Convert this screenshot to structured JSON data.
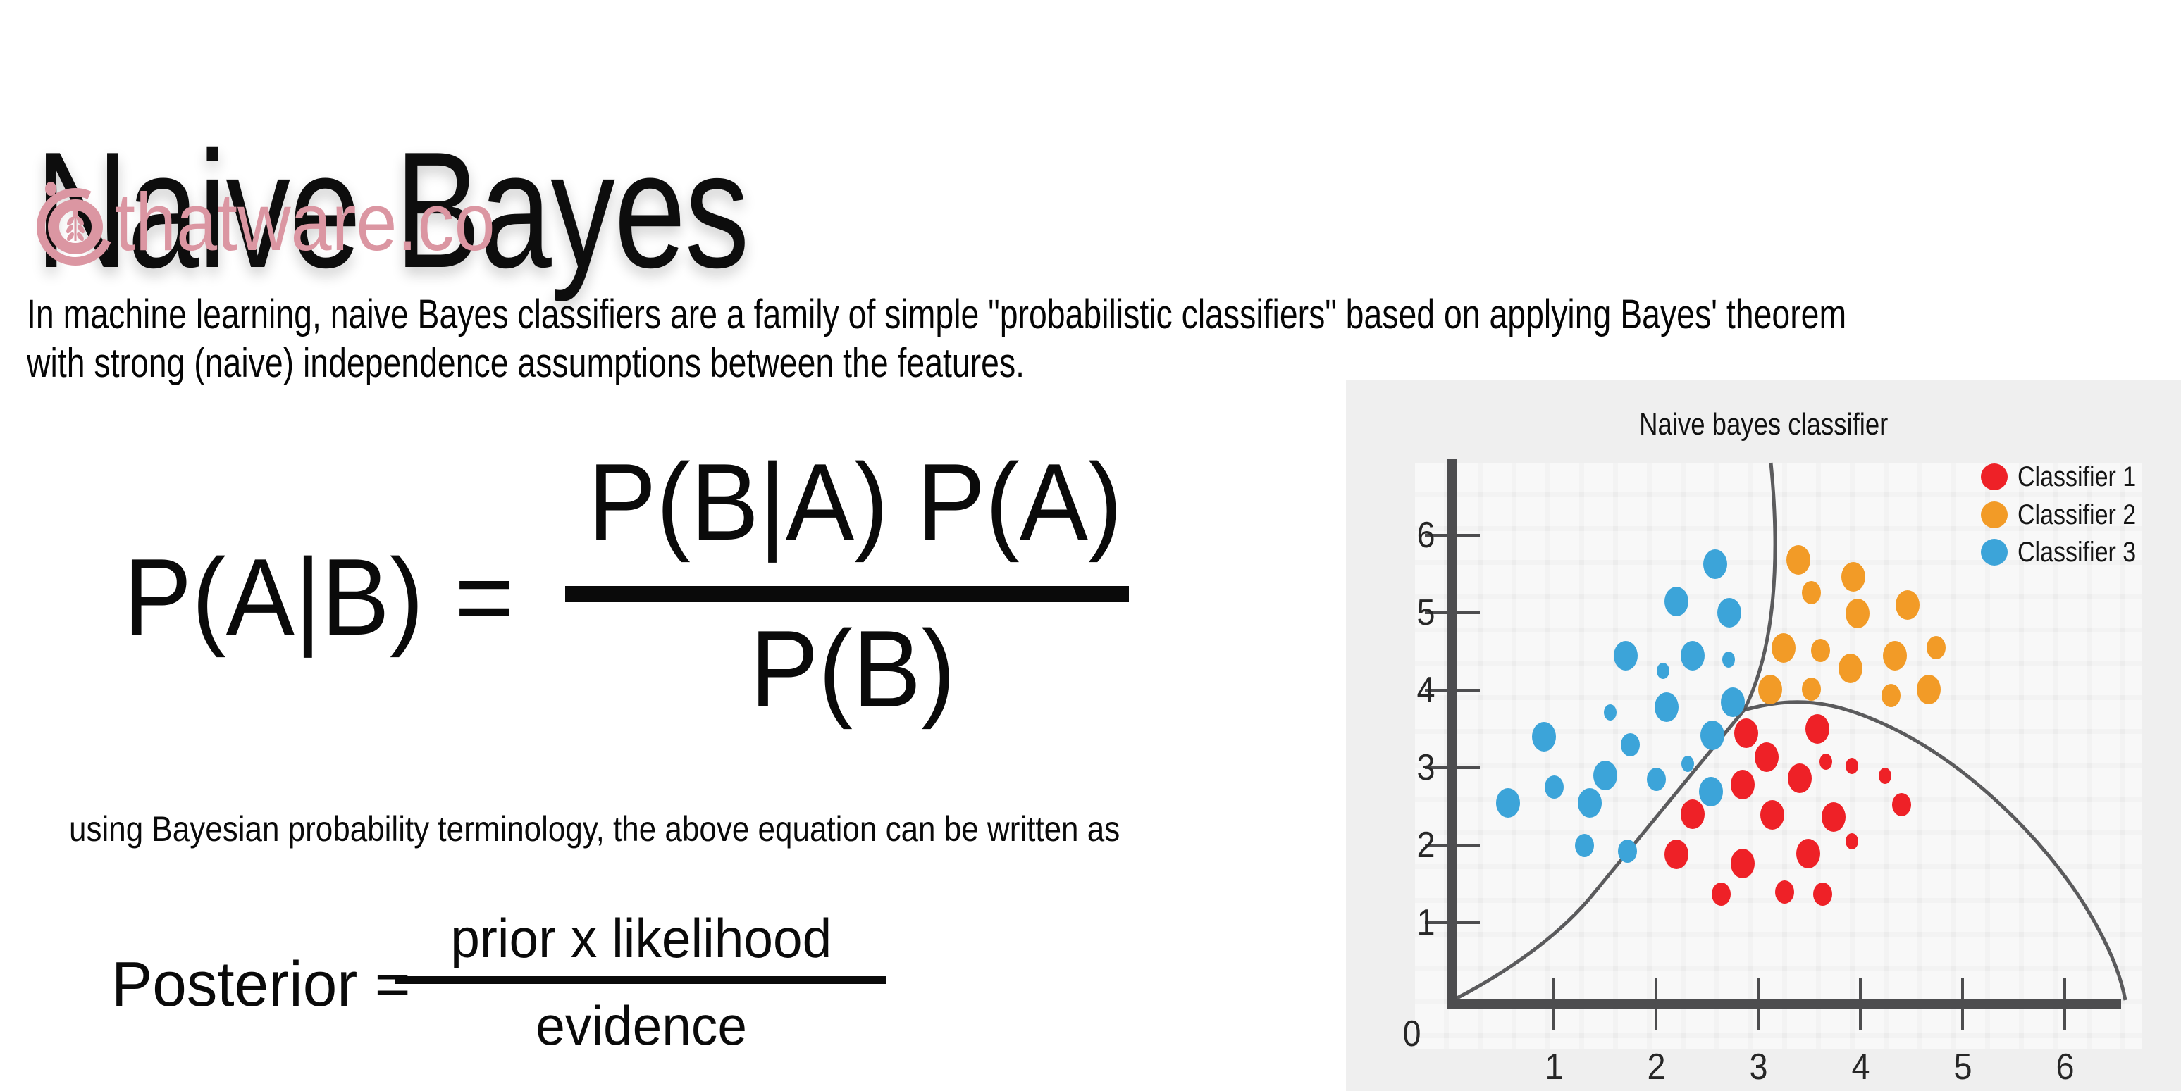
{
  "page": {
    "title": "Naive Bayes"
  },
  "brand": {
    "name": "thatware.co",
    "color": "#db96a2"
  },
  "intro": {
    "line1": "In machine learning, naive Bayes classifiers are a family of simple \"probabilistic classifiers\" based on applying Bayes' theorem",
    "line2": "with strong (naive) independence assumptions between the features."
  },
  "bayes_formula": {
    "lhs": "P(A|B)",
    "equals": "=",
    "numerator": "P(B|A) P(A)",
    "denominator": "P(B)"
  },
  "caption": "using Bayesian probability terminology, the above equation can be written as",
  "terminology_formula": {
    "lhs": "Posterior =",
    "numerator": "prior x likelihood",
    "denominator": "evidence"
  },
  "chart_data": {
    "type": "scatter",
    "title": "Naive bayes classifier",
    "xlabel": "",
    "ylabel": "",
    "xlim": [
      0,
      7
    ],
    "ylim": [
      0,
      7
    ],
    "grid": true,
    "x_ticks": [
      1,
      2,
      3,
      4,
      5,
      6
    ],
    "y_ticks": [
      1,
      2,
      3,
      4,
      5,
      6
    ],
    "origin_label": "0",
    "legend_position": "top-right",
    "legend": [
      {
        "label": "Classifier 1",
        "color": "#ee2127"
      },
      {
        "label": "Classifier 2",
        "color": "#f29b27"
      },
      {
        "label": "Classifier 3",
        "color": "#3ca4d9"
      }
    ],
    "series": [
      {
        "name": "Classifier 1",
        "color": "#ee2127",
        "points": [
          [
            2.88,
            3.45,
            "L"
          ],
          [
            3.58,
            3.5,
            "L"
          ],
          [
            3.08,
            3.14,
            "L"
          ],
          [
            3.66,
            3.08,
            "S"
          ],
          [
            3.92,
            3.02,
            "S"
          ],
          [
            4.24,
            2.9,
            "S"
          ],
          [
            3.41,
            2.86,
            "L"
          ],
          [
            2.85,
            2.78,
            "L"
          ],
          [
            2.36,
            2.4,
            "L"
          ],
          [
            3.14,
            2.39,
            "L"
          ],
          [
            3.74,
            2.36,
            "L"
          ],
          [
            4.4,
            2.52,
            "M"
          ],
          [
            3.92,
            2.05,
            "S"
          ],
          [
            2.2,
            1.88,
            "L"
          ],
          [
            2.85,
            1.76,
            "L"
          ],
          [
            3.49,
            1.89,
            "L"
          ],
          [
            3.26,
            1.4,
            "M"
          ],
          [
            2.64,
            1.37,
            "M"
          ],
          [
            3.63,
            1.37,
            "M"
          ]
        ]
      },
      {
        "name": "Classifier 2",
        "color": "#f29b27",
        "points": [
          [
            3.39,
            5.68,
            "L"
          ],
          [
            3.93,
            5.46,
            "L"
          ],
          [
            3.52,
            5.26,
            "M"
          ],
          [
            3.97,
            4.99,
            "L"
          ],
          [
            4.46,
            5.1,
            "L"
          ],
          [
            3.25,
            4.55,
            "L"
          ],
          [
            3.61,
            4.51,
            "M"
          ],
          [
            3.9,
            4.28,
            "L"
          ],
          [
            4.34,
            4.45,
            "L"
          ],
          [
            4.74,
            4.55,
            "M"
          ],
          [
            3.12,
            4.01,
            "L"
          ],
          [
            3.52,
            4.01,
            "M"
          ],
          [
            4.3,
            3.93,
            "M"
          ],
          [
            4.67,
            4.01,
            "L"
          ]
        ]
      },
      {
        "name": "Classifier 3",
        "color": "#3ca4d9",
        "points": [
          [
            2.58,
            5.63,
            "L"
          ],
          [
            2.2,
            5.15,
            "L"
          ],
          [
            2.72,
            5.0,
            "L"
          ],
          [
            1.7,
            4.45,
            "L"
          ],
          [
            2.36,
            4.45,
            "L"
          ],
          [
            2.07,
            4.25,
            "S"
          ],
          [
            2.71,
            4.4,
            "S"
          ],
          [
            1.55,
            3.71,
            "S"
          ],
          [
            2.1,
            3.78,
            "L"
          ],
          [
            2.75,
            3.85,
            "L"
          ],
          [
            2.55,
            3.42,
            "L"
          ],
          [
            0.9,
            3.4,
            "L"
          ],
          [
            1.75,
            3.3,
            "M"
          ],
          [
            2.31,
            3.05,
            "S"
          ],
          [
            1.5,
            2.9,
            "L"
          ],
          [
            2.0,
            2.85,
            "M"
          ],
          [
            1.0,
            2.75,
            "M"
          ],
          [
            2.54,
            2.69,
            "L"
          ],
          [
            1.35,
            2.55,
            "L"
          ],
          [
            0.55,
            2.55,
            "L"
          ],
          [
            1.3,
            2.0,
            "M"
          ],
          [
            1.72,
            1.92,
            "M"
          ]
        ]
      }
    ]
  },
  "colors": {
    "panel_bg": "#efefef",
    "axis": "#4d4d4f",
    "red": "#ee2127",
    "orange": "#f29b27",
    "blue": "#3ca4d9",
    "brand_pink": "#db96a2"
  }
}
